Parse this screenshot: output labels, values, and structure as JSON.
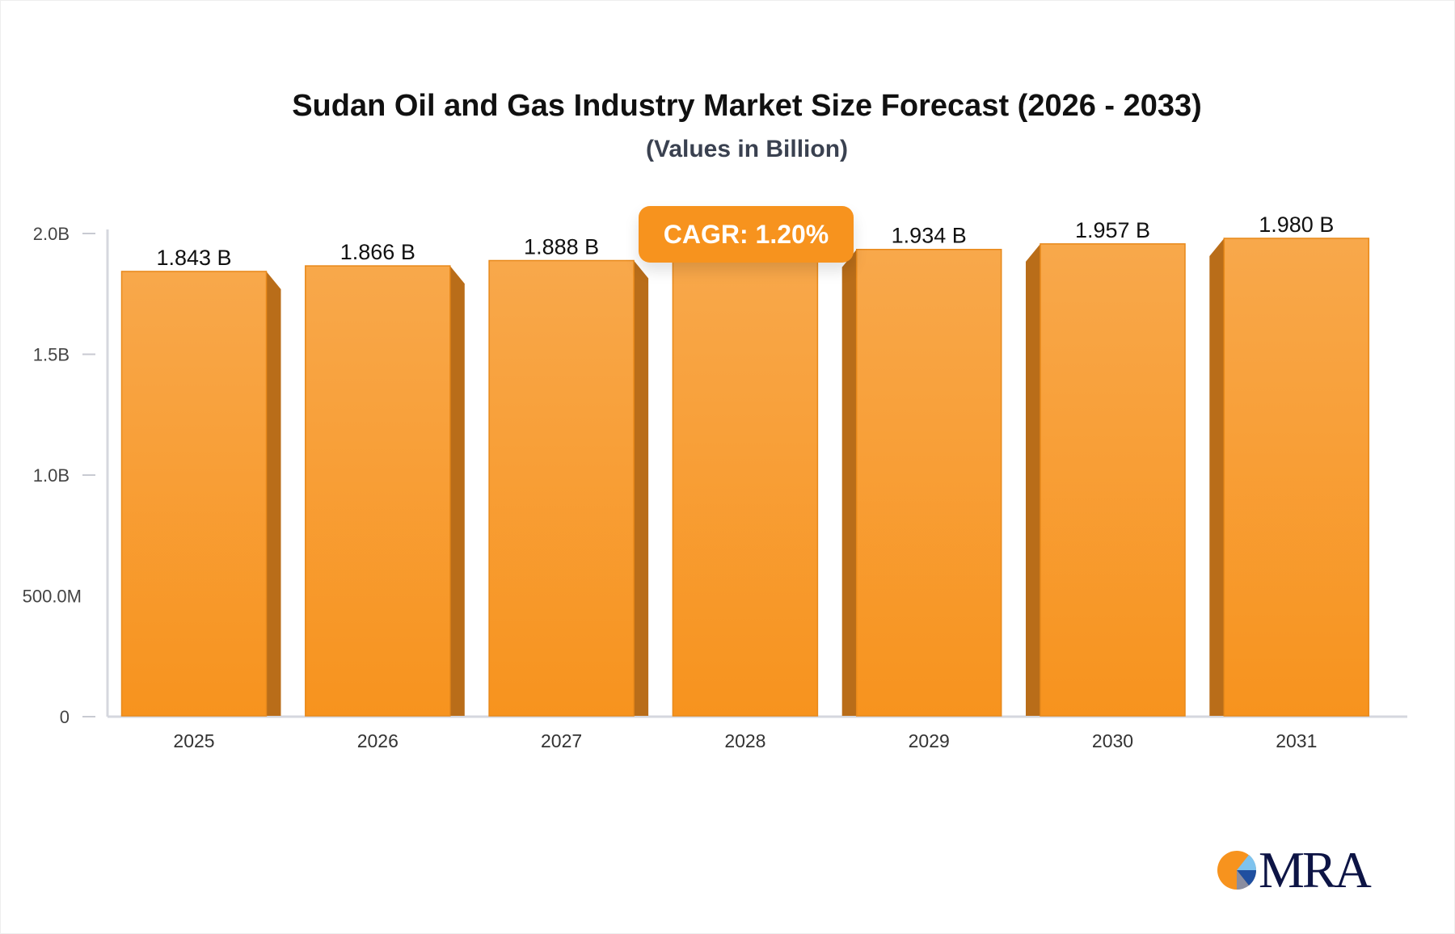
{
  "chart_data": {
    "type": "bar",
    "title": "Sudan Oil and Gas Industry Market Size Forecast (2026 - 2033)",
    "subtitle": "(Values in Billion)",
    "categories": [
      "2025",
      "2026",
      "2027",
      "2028",
      "2029",
      "2030",
      "2031"
    ],
    "values": [
      1.843,
      1.866,
      1.888,
      1.911,
      1.934,
      1.957,
      1.98
    ],
    "data_labels": [
      "1.843 B",
      "1.866 B",
      "1.888 B",
      "",
      "1.934 B",
      "1.957 B",
      "1.980 B"
    ],
    "y_ticks": [
      {
        "value": 0,
        "label": "0"
      },
      {
        "value": 0.5,
        "label": "500.0M"
      },
      {
        "value": 1.0,
        "label": "1.0B"
      },
      {
        "value": 1.5,
        "label": "1.5B"
      },
      {
        "value": 2.0,
        "label": "2.0B"
      }
    ],
    "ylim": [
      0,
      2.0
    ],
    "grid": false,
    "xlabel": "",
    "ylabel": "",
    "colors": {
      "bar_top": "#f8a84b",
      "bar_bottom": "#f7931e",
      "bar_side": "#b96d19",
      "axis": "#d5d7de"
    }
  },
  "badge": {
    "label": "CAGR: 1.20%",
    "color": "#f7931e"
  },
  "logo": {
    "text": "MRA"
  }
}
